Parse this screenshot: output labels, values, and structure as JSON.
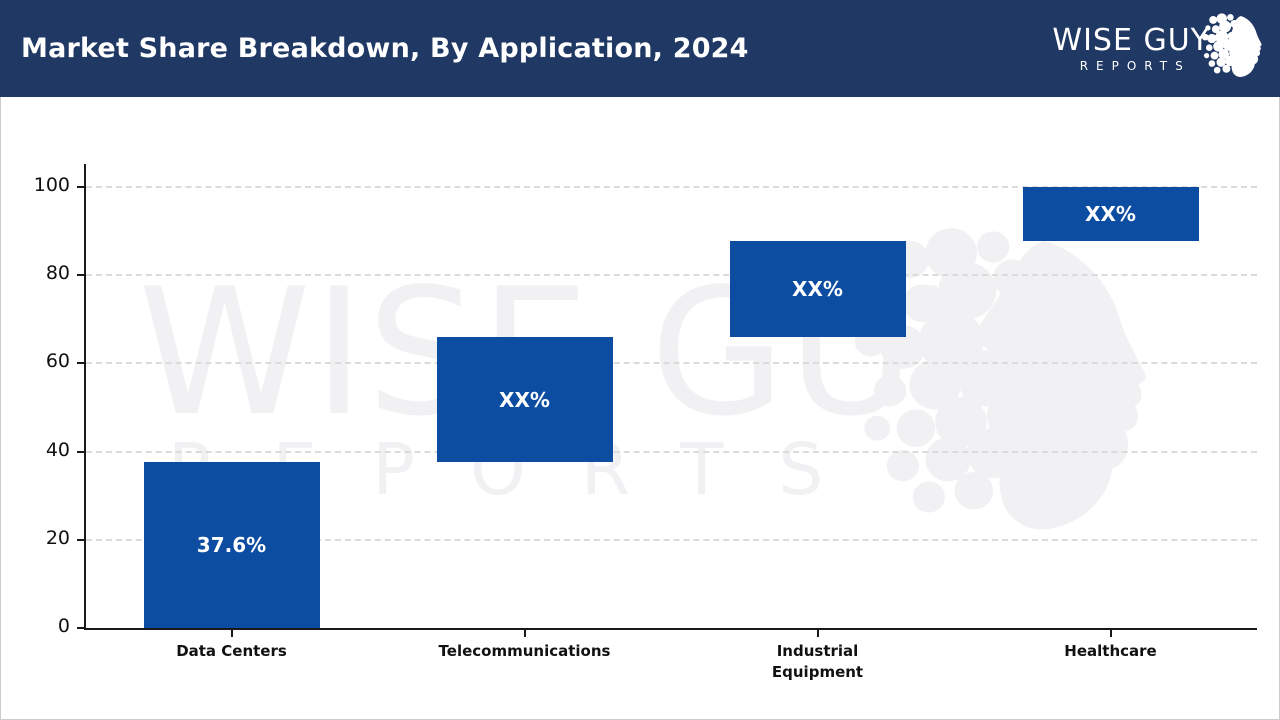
{
  "header": {
    "title": "Market Share Breakdown, By Application, 2024",
    "logo": {
      "brand_line1": "WISE GUY",
      "brand_line2": "REPORTS"
    }
  },
  "watermark": {
    "line1": "WISE GUY",
    "line2": "REPORTS"
  },
  "chart_data": {
    "type": "bar",
    "subtype": "stacked_waterfall_percentage",
    "title": "Market Share Breakdown, By Application, 2024",
    "categories": [
      "Data Centers",
      "Telecommunications",
      "Industrial Equipment",
      "Healthcare"
    ],
    "categories_display": [
      [
        "Data Centers"
      ],
      [
        "Telecommunications"
      ],
      [
        "Industrial",
        "Equipment"
      ],
      [
        "Healthcare"
      ]
    ],
    "segments": [
      {
        "category": "Data Centers",
        "label": "37.6%",
        "value": 37.6,
        "cumulative_start": 0,
        "cumulative_end": 37.6
      },
      {
        "category": "Telecommunications",
        "label": "XX%",
        "value": 28.4,
        "cumulative_start": 37.6,
        "cumulative_end": 66.0
      },
      {
        "category": "Industrial Equipment",
        "label": "XX%",
        "value": 21.8,
        "cumulative_start": 66.0,
        "cumulative_end": 87.8
      },
      {
        "category": "Healthcare",
        "label": "XX%",
        "value": 12.2,
        "cumulative_start": 87.8,
        "cumulative_end": 100.0
      }
    ],
    "yticks": [
      0,
      20,
      40,
      60,
      80,
      100
    ],
    "ylim": [
      0,
      100
    ],
    "xlabel": "",
    "ylabel": "",
    "grid": "horizontal dashed",
    "legend": "none",
    "bar_color": "#0c4da2",
    "bar_label_color": "#ffffff"
  },
  "colors": {
    "header_bg": "#203864",
    "header_text": "#ffffff",
    "page_bg": "#ffffff",
    "axis": "#1a1a1a",
    "tick_label": "#111111",
    "grid": "#dbdbdb",
    "watermark": "#f1f1f3",
    "frame_border": "#cccccc"
  }
}
